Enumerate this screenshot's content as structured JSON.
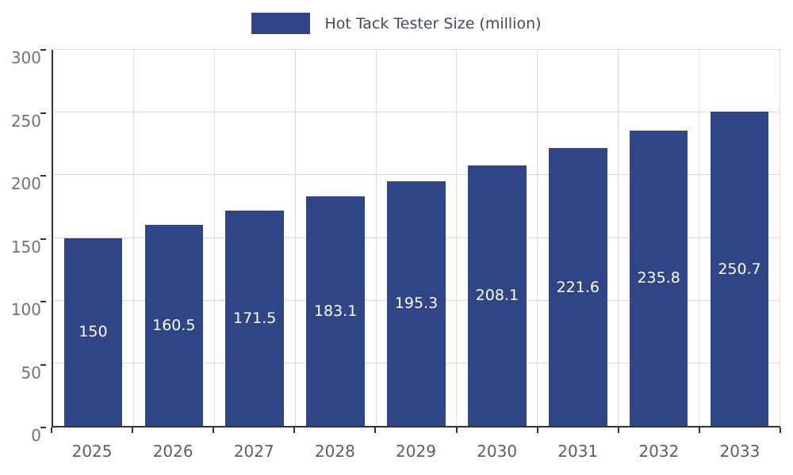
{
  "legend": {
    "label": "Hot Tack Tester Size (million)"
  },
  "colors": {
    "bar": "#2f4585",
    "bar_label": "#ffffff",
    "axis_line": "#333333",
    "gridline": "#dcdcdc",
    "y_tick_text": "#737373",
    "x_tick_text": "#595f6b",
    "legend_text": "#3f4a63"
  },
  "chart_data": {
    "type": "bar",
    "title": "Hot Tack Tester Size (million)",
    "xlabel": "",
    "ylabel": "",
    "categories": [
      "2025",
      "2026",
      "2027",
      "2028",
      "2029",
      "2030",
      "2031",
      "2032",
      "2033"
    ],
    "series": [
      {
        "name": "Hot Tack Tester Size (million)",
        "values": [
          150,
          160.5,
          171.5,
          183.1,
          195.3,
          208.1,
          221.6,
          235.8,
          250.7
        ],
        "value_labels": [
          "150",
          "160.5",
          "171.5",
          "183.1",
          "195.3",
          "208.1",
          "221.6",
          "235.8",
          "250.7"
        ]
      }
    ],
    "ylim": [
      0,
      300
    ],
    "yticks": [
      0,
      50,
      100,
      150,
      200,
      250,
      300
    ],
    "grid": true,
    "legend_position": "top",
    "value_labels_position": "inside-center"
  }
}
